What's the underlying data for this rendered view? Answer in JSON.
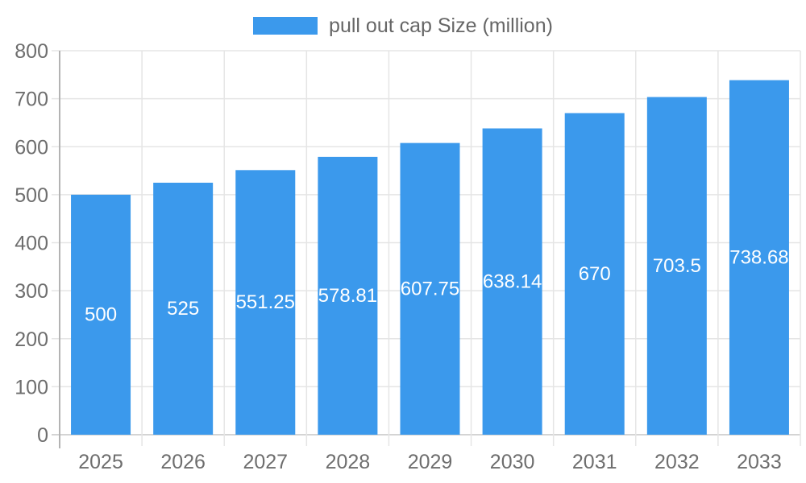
{
  "legend": {
    "label": "pull out cap Size (million)"
  },
  "chart_data": {
    "type": "bar",
    "title": "",
    "series_name": "pull out cap Size (million)",
    "categories": [
      "2025",
      "2026",
      "2027",
      "2028",
      "2029",
      "2030",
      "2031",
      "2032",
      "2033"
    ],
    "values": [
      500,
      525,
      551.25,
      578.81,
      607.75,
      638.14,
      670,
      703.5,
      738.68
    ],
    "value_labels": [
      "500",
      "525",
      "551.25",
      "578.81",
      "607.75",
      "638.14",
      "670",
      "703.5",
      "738.68"
    ],
    "xlabel": "",
    "ylabel": "",
    "ylim": [
      0,
      800
    ],
    "yticks": [
      0,
      100,
      200,
      300,
      400,
      500,
      600,
      700,
      800
    ],
    "grid": true,
    "legend_position": "top",
    "colors": {
      "bar": "#3B99EC",
      "value_label": "#FFFFFF",
      "axis_text": "#6E6E6E",
      "legend_text": "#666666",
      "gridline": "#E5E5E5",
      "y_axis_line": "#B3B3B3",
      "x_axis_line": "#D4D4D4",
      "background": "#FFFFFF"
    }
  }
}
